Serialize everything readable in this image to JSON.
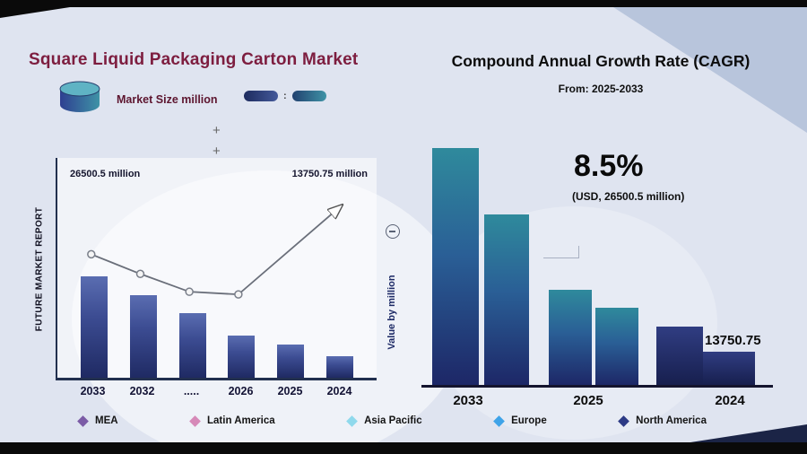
{
  "header": {
    "left_title": "Square Liquid Packaging Carton Market",
    "market_size_label": "Market Size million",
    "right_title": "Compound Annual Growth Rate (CAGR)",
    "right_subtitle": "From: 2025-2033"
  },
  "decor": {
    "plus_mark": "+"
  },
  "left_chart": {
    "top_left_value": "26500.5 million",
    "top_right_value": "13750.75 million",
    "side_label": "FUTURE MARKET REPORT"
  },
  "right_chart": {
    "cagr_value": "8.5%",
    "cagr_caption": "(USD, 26500.5 million)",
    "side_label": "Value by million",
    "end_value_label": "13750.75"
  },
  "legend": {
    "items": [
      {
        "label": "MEA",
        "color": "#7b5ba6"
      },
      {
        "label": "Latin America",
        "color": "#d689b8"
      },
      {
        "label": "Asia Pacific",
        "color": "#8fd9ec"
      },
      {
        "label": "Europe",
        "color": "#3fa3e8"
      },
      {
        "label": "North America",
        "color": "#2c3a85"
      }
    ]
  },
  "colors": {
    "accent_maroon": "#7d1d3f",
    "frame_black": "#0a0a0a",
    "background": "#dfe4f0",
    "left_bar_top": "#5a6db1",
    "left_bar_bottom": "#1f2a63",
    "right_bar_teal_top": "#2f8a9c",
    "right_bar_navy_bottom": "#171f4e"
  },
  "chart_data": [
    {
      "type": "bar",
      "title": "Square Liquid Packaging Carton Market — Market Size (million)",
      "categories": [
        "2033",
        "2032",
        ".....",
        "2026",
        "2025",
        "2024"
      ],
      "relative_heights": [
        1.0,
        0.82,
        0.64,
        0.42,
        0.33,
        0.21
      ],
      "annotations": {
        "max_value": "26500.5 million",
        "min_value": "13750.75 million"
      },
      "trend_line": "markers decline from 2033 toward 2026, then arrow rises sharply to upper right",
      "ylabel": "FUTURE MARKET REPORT",
      "legend_position": "none",
      "grid": false
    },
    {
      "type": "bar",
      "title": "Compound Annual Growth Rate (CAGR)",
      "subtitle": "From: 2025-2033",
      "categories": [
        "2033",
        "2025",
        "2024"
      ],
      "bar_groups": [
        "2033",
        "2033",
        "2025",
        "2025",
        "2024",
        "2024"
      ],
      "relative_heights": [
        1.0,
        0.72,
        0.4,
        0.325,
        0.245,
        0.14
      ],
      "cagr": "8.5%",
      "annotations": [
        "(USD, 26500.5 million)",
        "13750.75"
      ],
      "ylabel": "Value by million",
      "legend_position": "bottom",
      "grid": false
    }
  ]
}
